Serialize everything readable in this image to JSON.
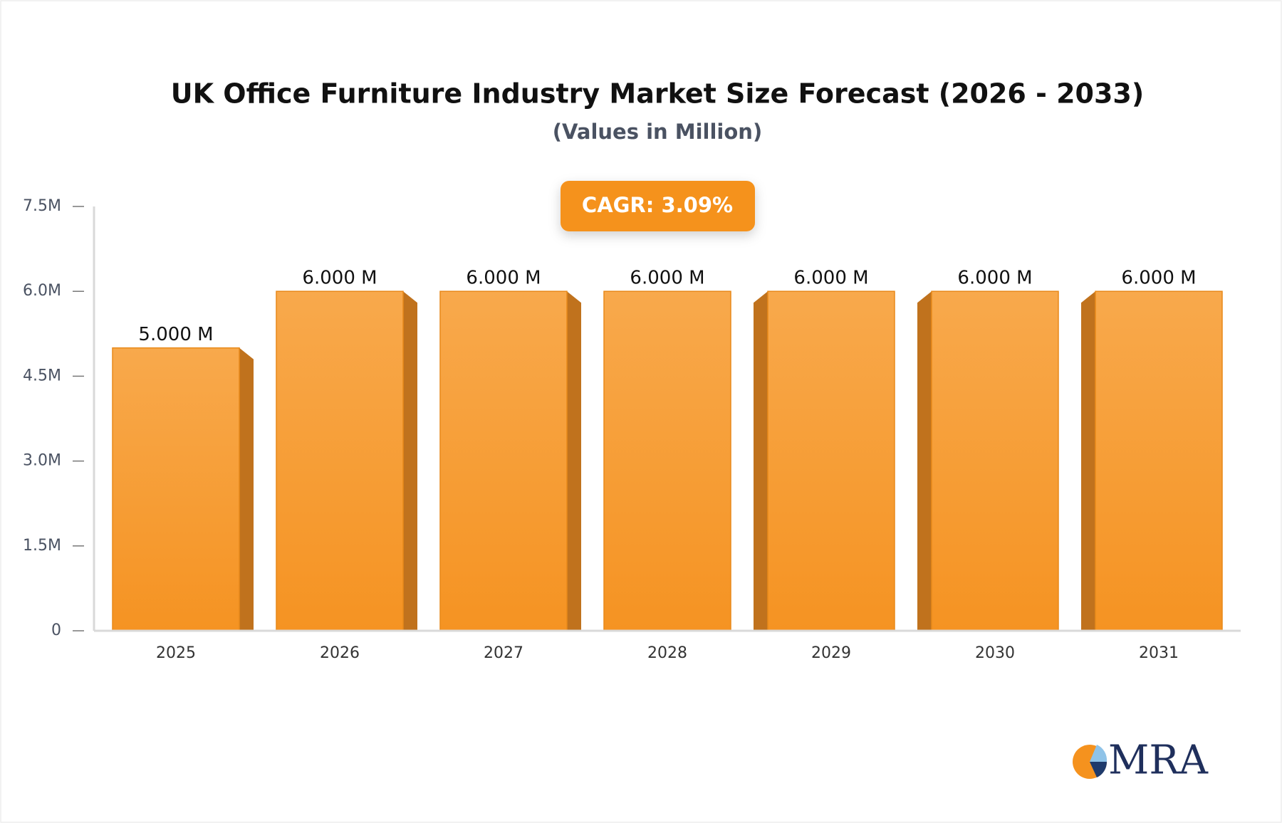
{
  "chart_data": {
    "type": "bar",
    "title": "UK Office Furniture Industry Market Size Forecast (2026 - 2033)",
    "subtitle": "(Values in Million)",
    "annotation": "CAGR: 3.09%",
    "categories": [
      "2025",
      "2026",
      "2027",
      "2028",
      "2029",
      "2030",
      "2031"
    ],
    "values": [
      5,
      6,
      6,
      6,
      6,
      6,
      6
    ],
    "value_labels": [
      "5.000 M",
      "6.000 M",
      "6.000 M",
      "6.000 M",
      "6.000 M",
      "6.000 M",
      "6.000 M"
    ],
    "color": "#f59a30",
    "ylim": [
      0,
      7.5
    ],
    "yticks": [
      0,
      {
        "value": 1.5,
        "label": "1.5M"
      },
      {
        "value": 3,
        "label": "3.0M"
      },
      {
        "value": 4.5,
        "label": "4.5M"
      },
      {
        "value": 6,
        "label": "6.0M"
      },
      {
        "value": 7.5,
        "label": "7.5M"
      }
    ],
    "grid": false
  },
  "logo": "MRA"
}
